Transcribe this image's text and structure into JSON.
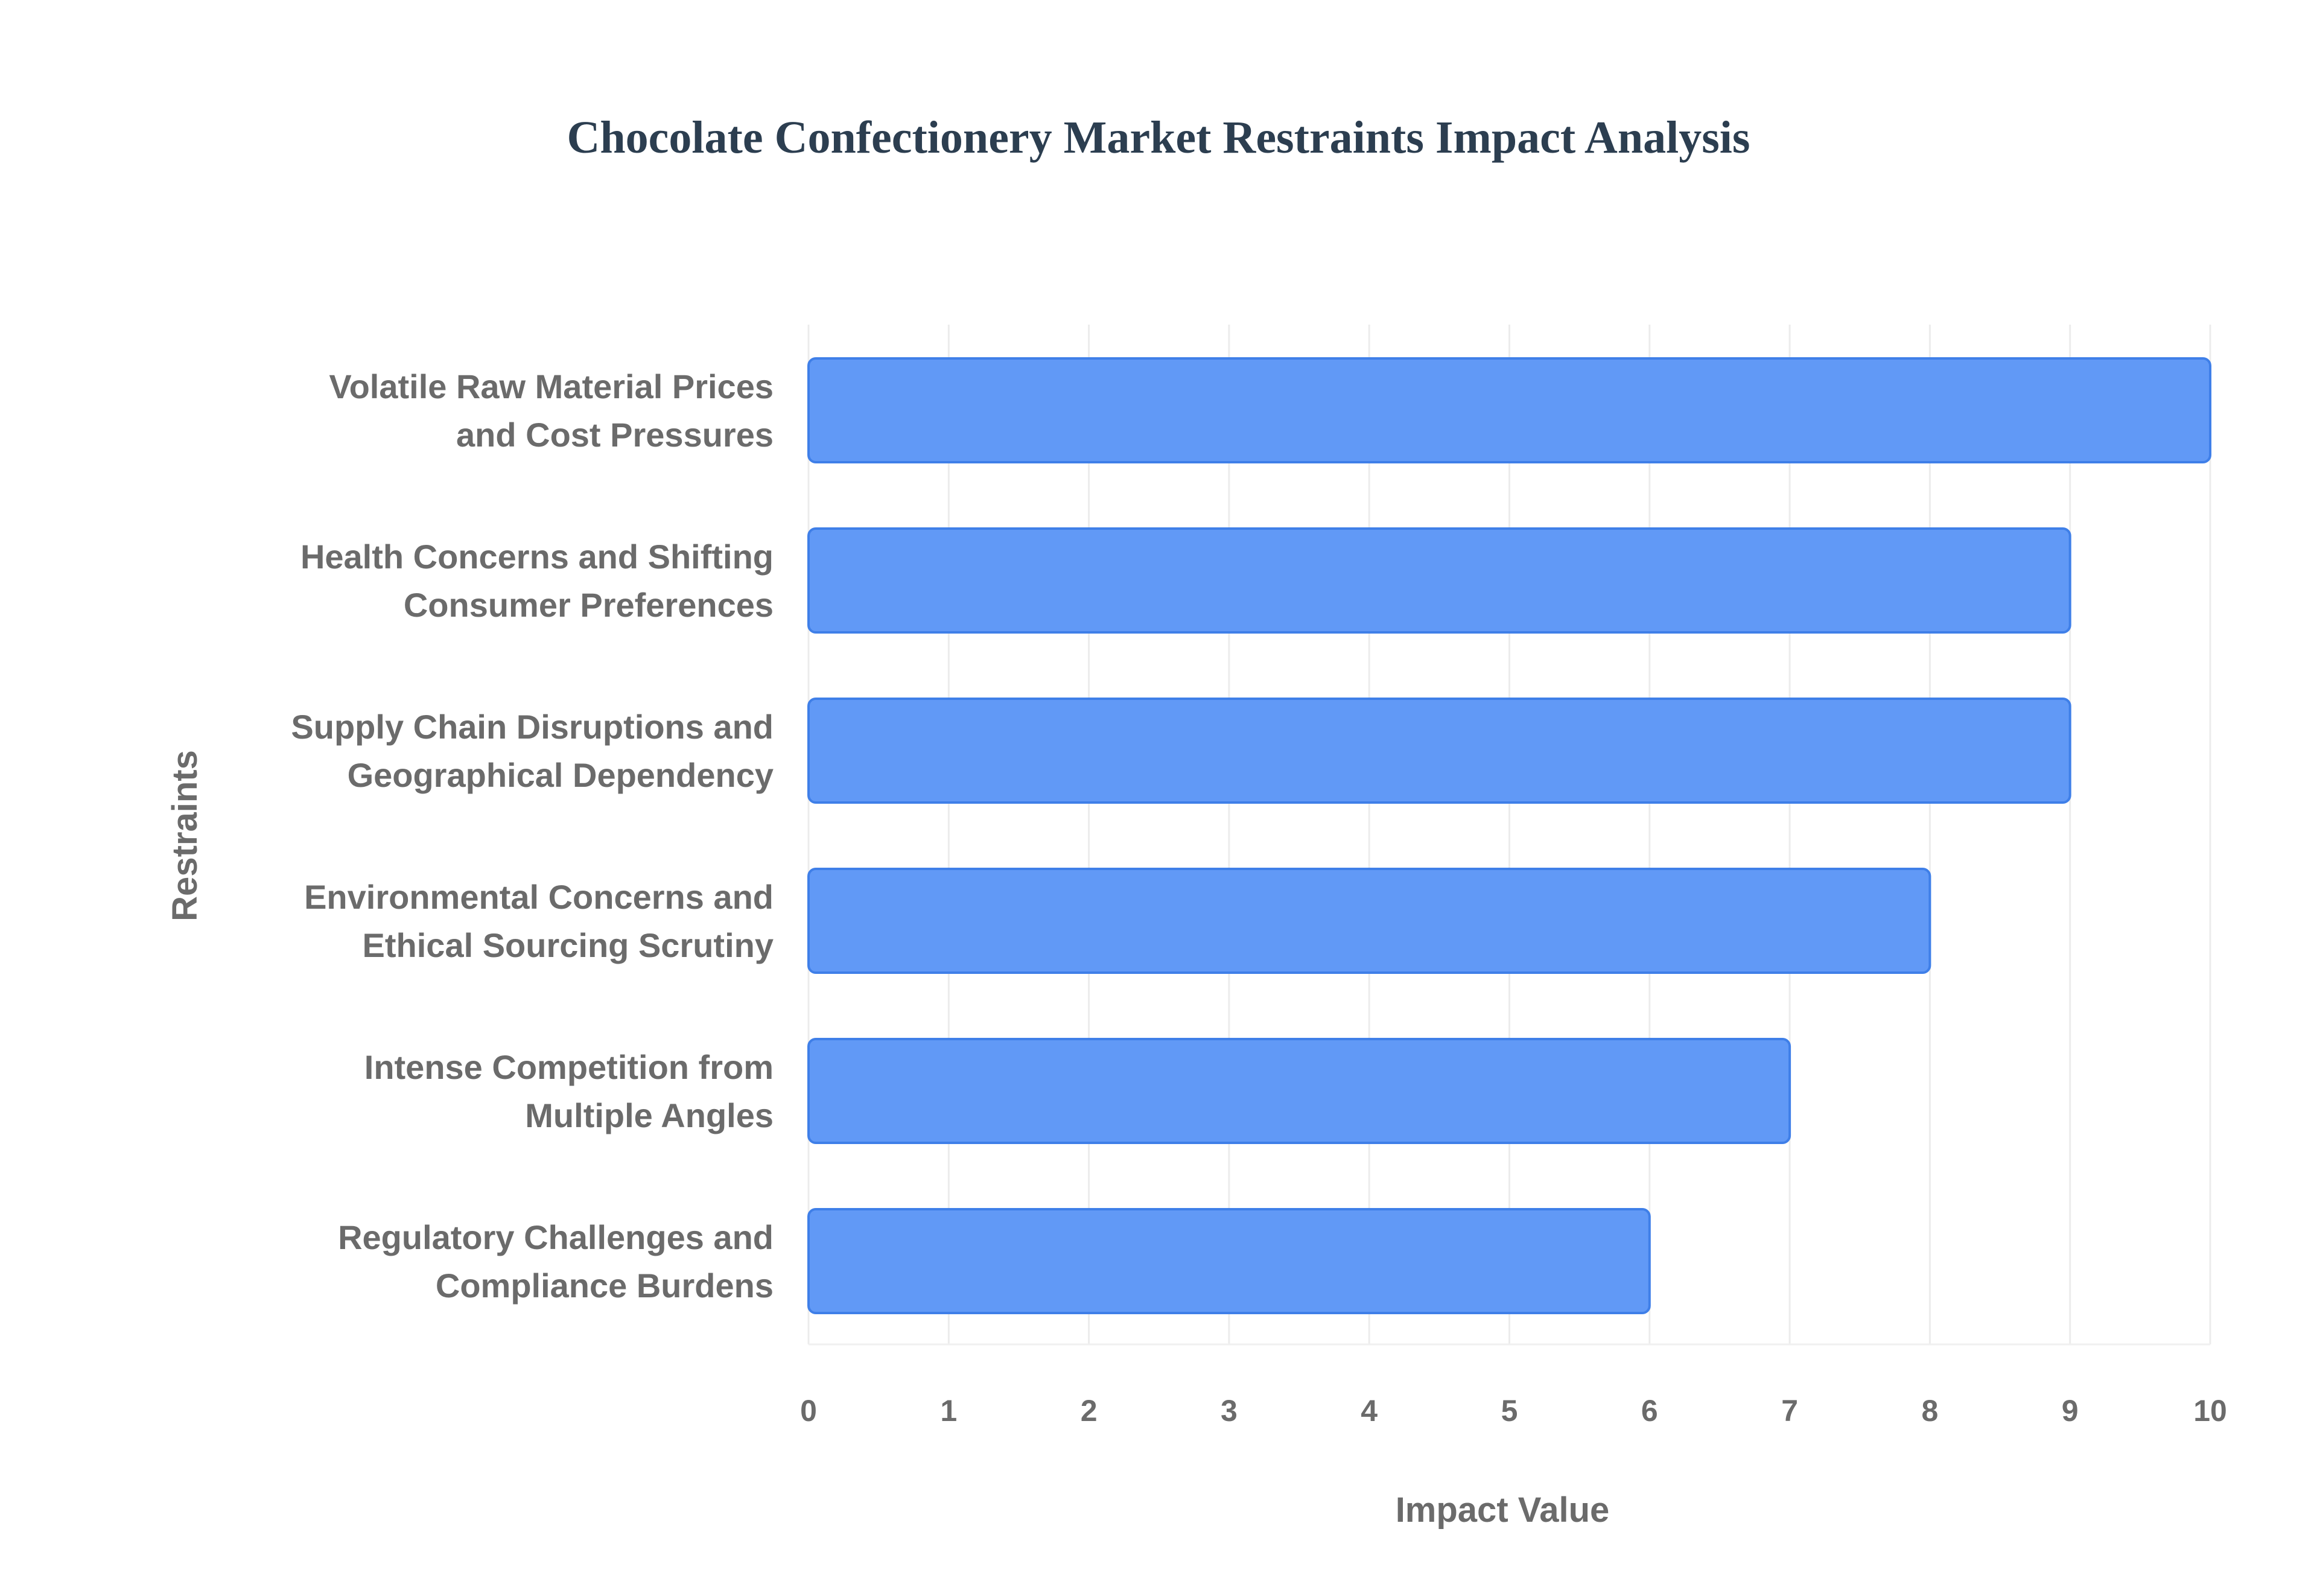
{
  "chart_data": {
    "type": "bar",
    "orientation": "horizontal",
    "title": "Chocolate Confectionery Market Restraints Impact Analysis",
    "xlabel": "Impact Value",
    "ylabel": "Restraints",
    "xlim": [
      0,
      10
    ],
    "x_ticks": [
      "0",
      "1",
      "2",
      "3",
      "4",
      "5",
      "6",
      "7",
      "8",
      "9",
      "10"
    ],
    "grid": true,
    "legend": "none",
    "categories": [
      [
        "Volatile Raw Material Prices",
        "and Cost Pressures"
      ],
      [
        "Health Concerns and Shifting",
        "Consumer Preferences"
      ],
      [
        "Supply Chain Disruptions and",
        "Geographical Dependency"
      ],
      [
        "Environmental Concerns and",
        "Ethical Sourcing Scrutiny"
      ],
      [
        "Intense Competition from",
        "Multiple Angles"
      ],
      [
        "Regulatory Challenges and",
        "Compliance Burdens"
      ]
    ],
    "values": [
      10,
      9,
      9,
      8,
      7,
      6
    ],
    "colors": {
      "bar_fill": "#6199f6",
      "bar_stroke": "#3f7fe8",
      "title": "#2c3e50",
      "axis_text": "#6b6b6b",
      "grid": "#ececec"
    }
  }
}
